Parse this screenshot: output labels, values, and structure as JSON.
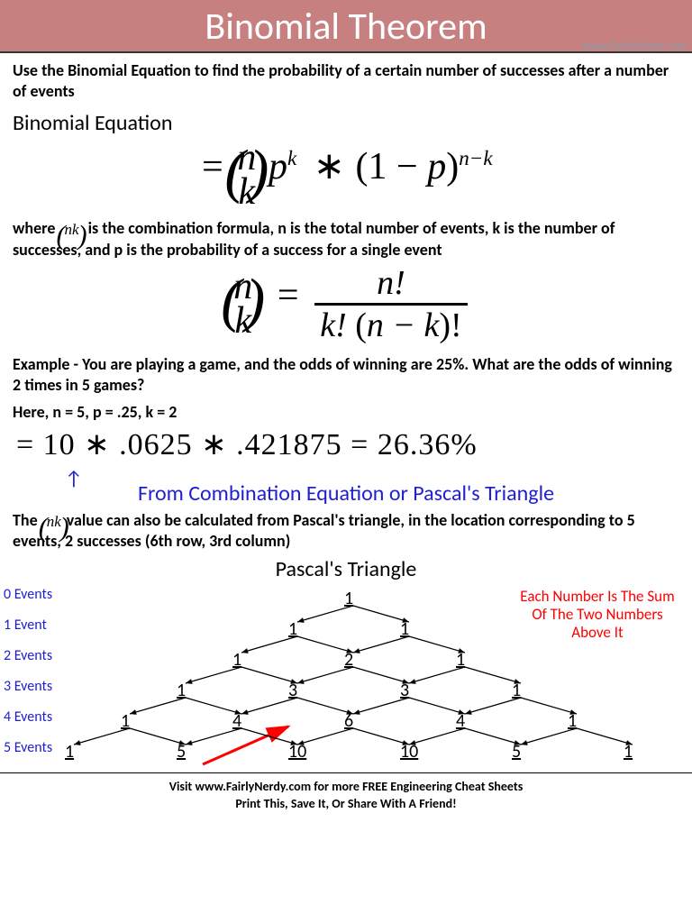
{
  "header": {
    "title": "Binomial Theorem",
    "site": "www.FairlyNerdy.com"
  },
  "intro": "Use the Binomial Equation to find the probability of a certain number of successes after a number of events",
  "eqTitle": "Binomial Equation",
  "eq1": {
    "eq": "=",
    "n": "n",
    "k": "k",
    "p": "p",
    "exp1": "k",
    "mult": "∗",
    "one": "1",
    "minus": "−",
    "exp2": "n−k"
  },
  "desc1a": "where ",
  "desc1b": " is the combination formula, n is the total number of events, k is the number of successes, and p is the probability of a success for a single event",
  "eq2": {
    "n": "n",
    "k": "k",
    "eq": "=",
    "nfact": "n!",
    "kfact": "k!",
    "open": "(",
    "nmk": "n − k",
    "close": ")!"
  },
  "example": "Example - You are playing a game, and the odds of winning are 25%.  What are the odds of winning 2 times in 5 games?",
  "here": "Here, n = 5, p = .25, k = 2",
  "eq3": "=  10  ∗   .0625  ∗   .421875  =   26.36%",
  "blueNote": "From Combination Equation or Pascal's Triangle",
  "desc2a": "The ",
  "desc2b": "value can also be calculated from Pascal's triangle, in the location corresponding to 5 events, 2 successes  (6th row, 3rd column)",
  "pascalTitle": "Pascal's Triangle",
  "redNote": "Each Number Is The Sum Of The Two Numbers Above It",
  "events": [
    "0 Events",
    "1 Event",
    "2 Events",
    "3 Events",
    "4 Events",
    "5 Events"
  ],
  "triangle": [
    [
      1
    ],
    [
      1,
      1
    ],
    [
      1,
      2,
      1
    ],
    [
      1,
      3,
      3,
      1
    ],
    [
      1,
      4,
      6,
      4,
      1
    ],
    [
      1,
      5,
      10,
      10,
      5,
      1
    ]
  ],
  "footer1": "Visit www.FairlyNerdy.com for more FREE Engineering Cheat Sheets",
  "footer2": "Print This, Save It, Or Share With A Friend!",
  "colors": {
    "headerBg": "#c68080",
    "blue": "#2020d0",
    "red": "#ff0000"
  },
  "layout": {
    "triCenterX": 392,
    "triRowH": 34,
    "triColW": 62
  }
}
